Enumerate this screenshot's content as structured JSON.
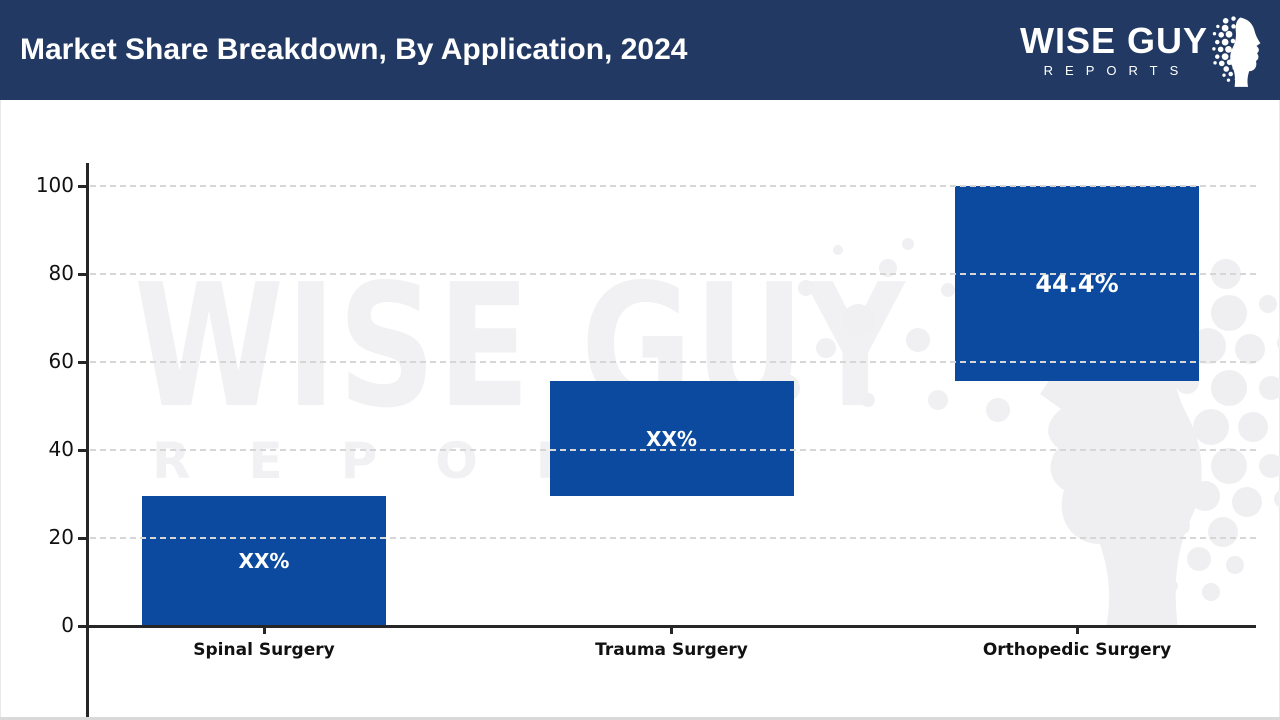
{
  "header": {
    "title": "Market Share Breakdown, By Application, 2024",
    "brand": {
      "name": "WISE GUY",
      "sub": "REPORTS"
    }
  },
  "watermark": {
    "name": "WISE GUY",
    "sub": "REPORTS"
  },
  "chart_data": {
    "type": "bar",
    "subtype": "floating-segment-breakdown",
    "title": "Market Share Breakdown, By Application, 2024",
    "categories": [
      "Spinal Surgery",
      "Trauma Surgery",
      "Orthopedic Surgery"
    ],
    "bars": [
      {
        "category": "Spinal Surgery",
        "start": 0,
        "end": 29.5,
        "label": "XX%"
      },
      {
        "category": "Trauma Surgery",
        "start": 29.5,
        "end": 55.6,
        "label": "XX%"
      },
      {
        "category": "Orthopedic Surgery",
        "start": 55.6,
        "end": 100,
        "label": "44.4%"
      }
    ],
    "xlabel": "",
    "ylabel": "",
    "ylim": [
      0,
      100
    ],
    "yticks": [
      0,
      20,
      40,
      60,
      80,
      100
    ],
    "grid": "horizontal-dashed",
    "legend": "none"
  },
  "colors": {
    "header_bg": "#223a63",
    "bar": "#0b4a9f",
    "grid": "#d6d6d6",
    "axis": "#262626",
    "bar_label": "#ffffff",
    "watermark": "#f1f1f4"
  }
}
